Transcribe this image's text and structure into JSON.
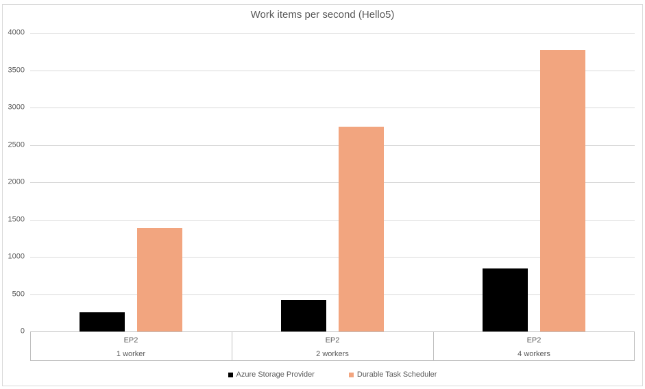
{
  "title": "Work items per second (Hello5)",
  "chart_data": {
    "type": "bar",
    "title": "Work items per second (Hello5)",
    "categories": [
      {
        "line1": "EP2",
        "line2": "1 worker"
      },
      {
        "line1": "EP2",
        "line2": "2 workers"
      },
      {
        "line1": "EP2",
        "line2": "4 workers"
      }
    ],
    "series": [
      {
        "name": "Azure Storage Provider",
        "color": "#000000",
        "values": [
          260,
          420,
          840
        ]
      },
      {
        "name": "Durable Task Scheduler",
        "color": "#F2A57F",
        "values": [
          1390,
          2740,
          3770
        ]
      }
    ],
    "xlabel": "",
    "ylabel": "",
    "ylim": [
      0,
      4000
    ],
    "ytick_step": 500,
    "yticks": [
      0,
      500,
      1000,
      1500,
      2000,
      2500,
      3000,
      3500,
      4000
    ],
    "grid": true,
    "legend_position": "bottom",
    "colors": {
      "gridline": "#D9D9D9",
      "axis_line": "#BFBFBF",
      "text": "#595959",
      "chart_border": "#D9D9D9",
      "background": "#FFFFFF"
    }
  }
}
